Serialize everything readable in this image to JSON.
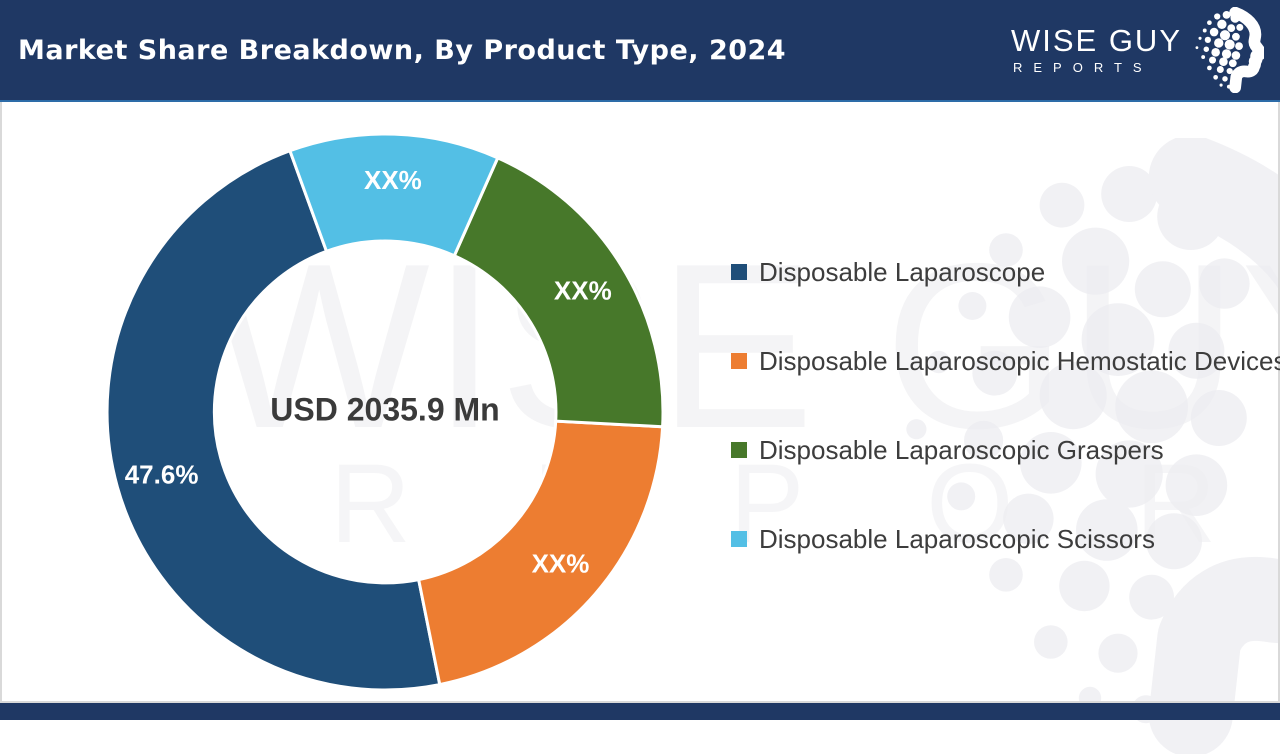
{
  "header": {
    "title": "Market Share Breakdown, By Product Type, 2024"
  },
  "logo": {
    "wordmark": "WISE GUY",
    "subtext": "REPORTS"
  },
  "watermark": {
    "wordmark": "WISE GUY",
    "subtext": "REPORTS"
  },
  "chart_data": {
    "type": "pie",
    "title": "Market Share Breakdown, By Product Type, 2024",
    "center_label": "USD 2035.9 Mn",
    "start_angle_deg": 110,
    "direction": "counterclockwise",
    "donut_inner_ratio": 0.615,
    "legend_position": "right",
    "segments": [
      {
        "label": "Disposable Laparoscope",
        "value_pct": 47.6,
        "display_label": "47.6%",
        "color": "#1f4e79"
      },
      {
        "label": "Disposable Laparoscopic Hemostatic Devices",
        "value_pct": 21.0,
        "display_label": "XX%",
        "color": "#ed7d31"
      },
      {
        "label": "Disposable Laparoscopic Graspers",
        "value_pct": 19.2,
        "display_label": "XX%",
        "color": "#47782a"
      },
      {
        "label": "Disposable Laparoscopic Scissors",
        "value_pct": 12.2,
        "display_label": "XX%",
        "color": "#53bfe5"
      }
    ]
  },
  "colors": {
    "header_bg": "#1f3864",
    "accent_line": "#2d6ca8",
    "footer_bg": "#1f3864",
    "center_text": "#3a3a3a",
    "legend_text": "#3d3d3d",
    "border": "#d9d9d9",
    "watermark_gray": "#ededf1"
  }
}
